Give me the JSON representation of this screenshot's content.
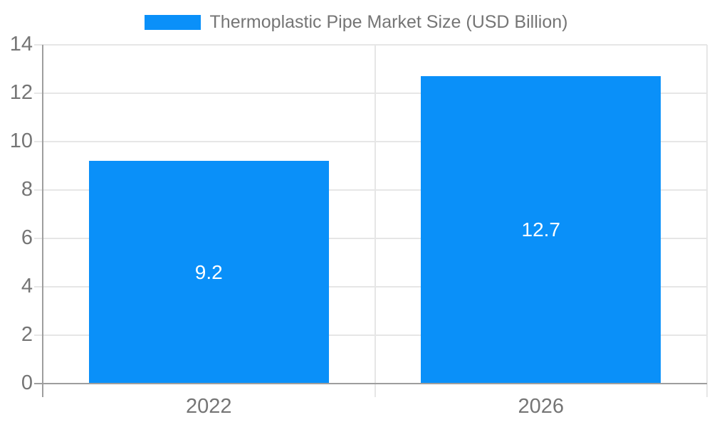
{
  "chart_data": {
    "type": "bar",
    "title": "Thermoplastic Pipe Market Size (USD Billion)",
    "categories": [
      "2022",
      "2026"
    ],
    "series": [
      {
        "name": "Thermoplastic Pipe Market Size (USD Billion)",
        "values": [
          9.2,
          12.7
        ]
      }
    ],
    "value_labels": [
      "9.2",
      "12.7"
    ],
    "xlabel": "",
    "ylabel": "",
    "ylim": [
      0,
      14
    ],
    "yticks": [
      0,
      2,
      4,
      6,
      8,
      10,
      12,
      14
    ],
    "grid": true,
    "legend_position": "top",
    "colors": {
      "bar": "#0a90f9",
      "axis_line": "#9e9e9e",
      "gridline": "#e6e6e6",
      "tick_label": "#757575",
      "legend_text": "#757575",
      "bar_value_label": "#ffffff",
      "background": "#ffffff"
    }
  }
}
